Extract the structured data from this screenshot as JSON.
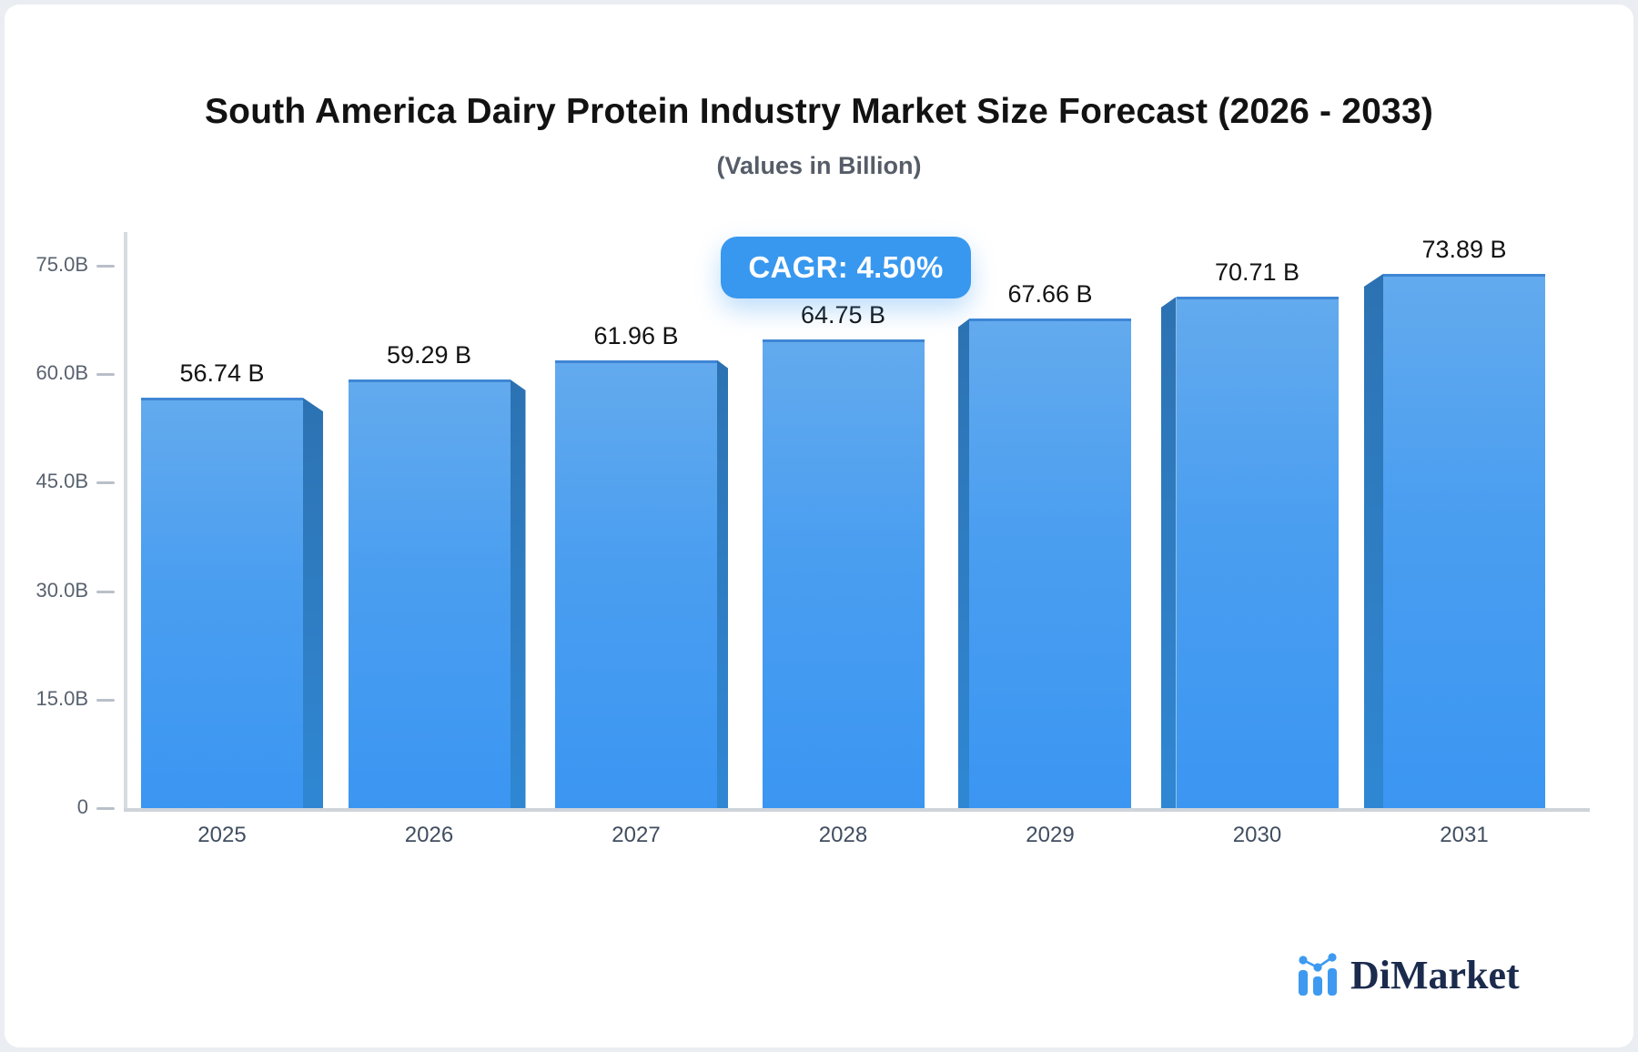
{
  "header": {
    "title": "South America Dairy Protein Industry Market Size Forecast (2026 - 2033)",
    "subtitle": "(Values in Billion)"
  },
  "cagr_badge": {
    "label": "CAGR: 4.50%",
    "color": "#3898ef"
  },
  "chart_data": {
    "type": "bar",
    "title": "South America Dairy Protein Industry Market Size Forecast (2026 - 2033)",
    "subtitle": "(Values in Billion)",
    "categories": [
      "2025",
      "2026",
      "2027",
      "2028",
      "2029",
      "2030",
      "2031"
    ],
    "values": [
      56.74,
      59.29,
      61.96,
      64.75,
      67.66,
      70.71,
      73.89
    ],
    "value_labels": [
      "56.74 B",
      "59.29 B",
      "61.96 B",
      "64.75 B",
      "67.66 B",
      "70.71 B",
      "73.89 B"
    ],
    "xlabel": "",
    "ylabel": "",
    "ylim": [
      0,
      75
    ],
    "ytick_values": [
      0,
      15,
      30,
      45,
      60,
      75
    ],
    "ytick_labels": [
      "0",
      "15.0B",
      "30.0B",
      "45.0B",
      "60.0B",
      "75.0B"
    ],
    "grid": false,
    "legend": false,
    "annotation": "CAGR: 4.50%",
    "bar_face_top_color": "#63aaee",
    "bar_face_bottom_color": "#3b96f2",
    "bar_side_color": "#2f7cc1",
    "axis_color": "#cfd4db"
  },
  "footer": {
    "brand": "DiMarket",
    "logo_icon": "mini-bar-line-chart-icon"
  }
}
